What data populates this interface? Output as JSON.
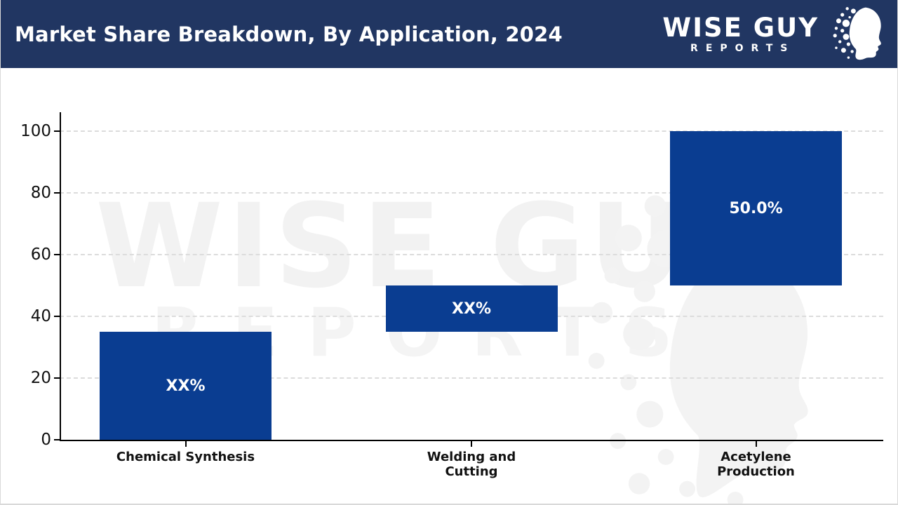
{
  "header": {
    "title": "Market Share Breakdown, By Application, 2024",
    "logo": {
      "line1": "WISE GUY",
      "line2": "REPORTS"
    }
  },
  "watermark": {
    "line1": "WISE GUY",
    "line2": "REPORTS"
  },
  "colors": {
    "header_bg": "#213662",
    "bar": "#0A3D91",
    "bar_label": "#ffffff",
    "grid": "#dcdcdc",
    "axis": "#000000"
  },
  "chart_data": {
    "type": "bar",
    "variant": "floating-waterfall",
    "title": "Market Share Breakdown, By Application, 2024",
    "categories": [
      "Chemical Synthesis",
      "Welding and Cutting",
      "Acetylene Production"
    ],
    "category_lines": [
      [
        "Chemical Synthesis"
      ],
      [
        "Welding and",
        "Cutting"
      ],
      [
        "Acetylene",
        "Production"
      ]
    ],
    "segments": [
      {
        "category": "Chemical Synthesis",
        "start": 0,
        "end": 35,
        "label": "XX%"
      },
      {
        "category": "Welding and Cutting",
        "start": 35,
        "end": 50,
        "label": "XX%"
      },
      {
        "category": "Acetylene Production",
        "start": 50,
        "end": 100,
        "label": "50.0%"
      }
    ],
    "ylim": [
      0,
      100
    ],
    "yticks": [
      0,
      20,
      40,
      60,
      80,
      100
    ],
    "xlabel": "",
    "ylabel": "",
    "grid": "horizontal-dashed",
    "legend": "none"
  }
}
